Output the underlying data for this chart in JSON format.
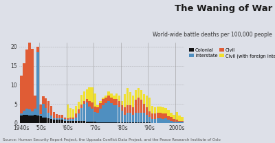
{
  "title": "The Waning of War",
  "subtitle": "World-wide battle deaths per 100,000 people",
  "source": "Source: Human Security Report Project, the Uppsala Conflict Data Project, and the Peace Research Institute of Oslo",
  "colors": {
    "colonial": "#111111",
    "interstate": "#4f8fc0",
    "civil": "#e05c35",
    "civil_foreign": "#f0e030"
  },
  "legend_labels": [
    "Colonial",
    "Interstate",
    "Civil",
    "Civil (with foreign intervention)"
  ],
  "colonial": [
    2.0,
    2.2,
    2.2,
    2.0,
    2.0,
    2.2,
    2.0,
    1.8,
    1.5,
    1.5,
    1.2,
    1.0,
    0.8,
    0.8,
    0.8,
    0.8,
    0.5,
    0.5,
    0.5,
    0.5,
    0.5,
    0.5,
    0.5,
    0.5,
    0.3,
    0.3,
    0.3,
    0.3,
    0.2,
    0.2,
    0.2,
    0.2,
    0.2,
    0.2,
    0.2,
    0.2,
    0.2,
    0.2,
    0.1,
    0.1,
    0.1,
    0.1,
    0.1,
    0.1,
    0.1,
    0.1,
    0.1,
    0.1,
    0.05,
    0.05,
    0.05,
    0.05,
    0.05,
    0.05,
    0.05,
    0.05,
    0.05,
    0.05,
    0.05,
    0.05
  ],
  "interstate": [
    0.5,
    1.0,
    1.5,
    1.5,
    1.0,
    1.5,
    16.5,
    0.5,
    3.5,
    2.5,
    1.5,
    1.0,
    0.5,
    0.5,
    0.5,
    0.5,
    0.5,
    0.3,
    0.5,
    0.5,
    1.0,
    2.0,
    3.5,
    4.5,
    5.0,
    4.0,
    3.5,
    2.5,
    2.5,
    3.5,
    4.5,
    5.0,
    5.5,
    5.0,
    4.5,
    4.5,
    4.0,
    3.0,
    2.0,
    2.5,
    2.5,
    2.0,
    2.5,
    2.5,
    2.5,
    2.5,
    2.0,
    1.5,
    1.0,
    1.0,
    1.2,
    1.2,
    1.0,
    1.2,
    0.8,
    0.5,
    0.3,
    0.3,
    0.2,
    0.2
  ],
  "civil": [
    10.0,
    12.5,
    15.5,
    18.5,
    16.5,
    3.5,
    1.5,
    2.5,
    2.0,
    2.5,
    3.0,
    2.5,
    1.5,
    1.0,
    0.8,
    0.8,
    0.5,
    0.5,
    0.5,
    0.5,
    1.0,
    1.0,
    0.8,
    0.8,
    1.0,
    1.5,
    1.5,
    1.5,
    1.5,
    1.5,
    1.5,
    1.5,
    1.5,
    1.5,
    1.5,
    1.5,
    1.5,
    1.5,
    2.0,
    2.0,
    2.0,
    2.0,
    3.5,
    4.0,
    3.5,
    2.5,
    2.0,
    1.5,
    1.5,
    1.5,
    1.5,
    1.5,
    1.5,
    1.2,
    1.0,
    1.0,
    0.8,
    0.5,
    0.3,
    0.2
  ],
  "civil_foreign": [
    0.0,
    0.0,
    0.0,
    0.0,
    0.0,
    0.0,
    0.0,
    0.0,
    0.0,
    0.0,
    0.0,
    0.0,
    0.0,
    0.0,
    0.0,
    0.0,
    0.0,
    3.5,
    2.5,
    2.0,
    2.0,
    2.0,
    2.5,
    2.5,
    2.5,
    3.5,
    4.0,
    3.5,
    0.5,
    0.5,
    0.5,
    0.5,
    1.0,
    1.0,
    1.0,
    1.5,
    1.5,
    1.0,
    3.5,
    4.5,
    3.5,
    3.0,
    2.5,
    2.5,
    2.5,
    2.5,
    3.0,
    3.5,
    2.0,
    1.5,
    1.5,
    1.5,
    1.5,
    1.5,
    1.5,
    1.2,
    1.0,
    2.0,
    1.5,
    1.2
  ],
  "n_bars": 60,
  "decade_starts": [
    0,
    7,
    17,
    27,
    37,
    47,
    57
  ],
  "decade_labels": [
    "1940s",
    "'50s",
    "'60s",
    "'70s",
    "'80s",
    "'90s",
    "2000s"
  ],
  "ylim": [
    0,
    21
  ],
  "yticks": [
    0,
    5,
    10,
    15,
    20
  ],
  "bg_color": "#dde0e8"
}
